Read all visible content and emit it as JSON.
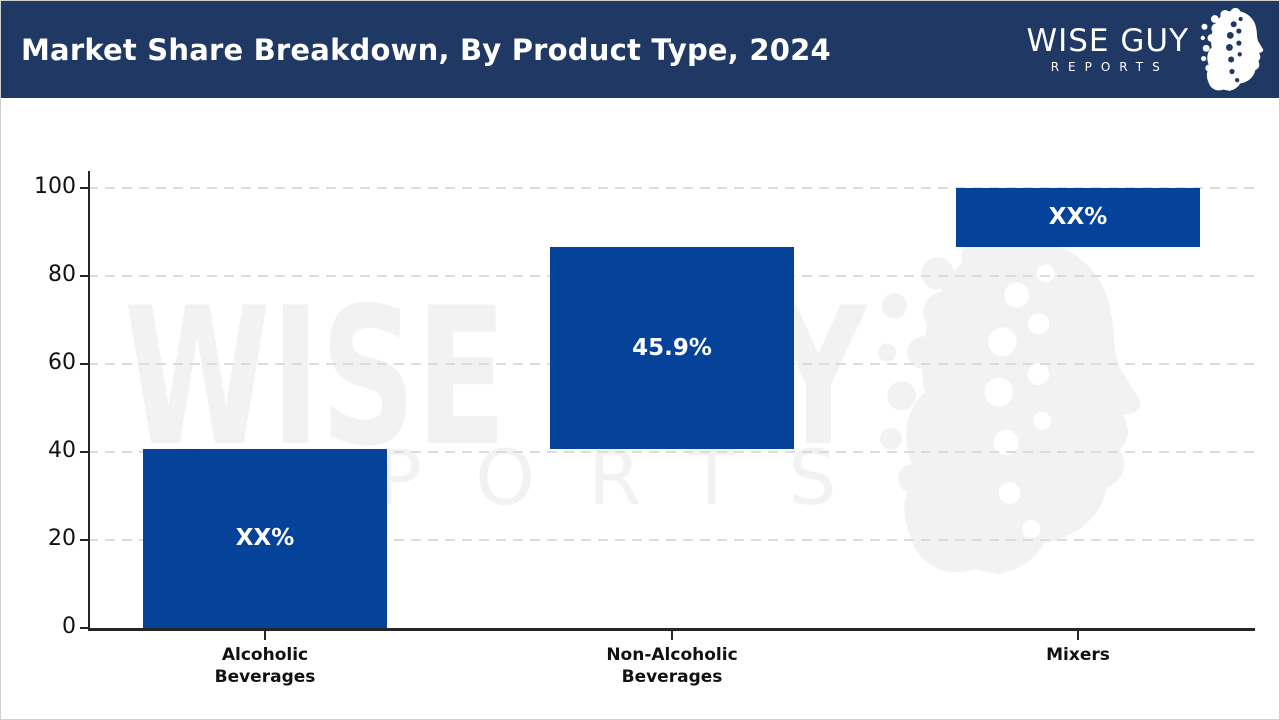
{
  "header": {
    "title": "Market Share Breakdown, By Product Type, 2024",
    "logo": {
      "name": "WISE GUY",
      "sub": "REPORTS"
    }
  },
  "watermark": {
    "name": "WISE GUY",
    "sub": "REPORTS"
  },
  "chart_data": {
    "type": "bar",
    "subtype": "waterfall",
    "title": "Market Share Breakdown, By Product Type, 2024",
    "categories": [
      "Alcoholic Beverages",
      "Non-Alcoholic Beverages",
      "Mixers"
    ],
    "category_lines": [
      [
        "Alcoholic",
        "Beverages"
      ],
      [
        "Non-Alcoholic",
        "Beverages"
      ],
      [
        "Mixers"
      ]
    ],
    "bars": [
      {
        "category": "Alcoholic Beverages",
        "base": 0,
        "top": 40.7,
        "label": "XX%"
      },
      {
        "category": "Non-Alcoholic Beverages",
        "base": 40.7,
        "top": 86.6,
        "label": "45.9%"
      },
      {
        "category": "Mixers",
        "base": 86.6,
        "top": 100,
        "label": "XX%"
      }
    ],
    "xlabel": "",
    "ylabel": "",
    "ylim": [
      0,
      100
    ],
    "yticks": [
      0,
      20,
      40,
      60,
      80,
      100
    ],
    "grid": "horizontal-dashed",
    "legend": "none",
    "bar_color": "#05429a",
    "bar_label_color": "#ffffff"
  },
  "colors": {
    "header_bg": "#1f3864",
    "accent_blue": "#05429a",
    "axis": "#262626",
    "gridline": "#dcdcdc",
    "watermark": "#f2f2f2",
    "frame_border": "#cfcfcf"
  }
}
